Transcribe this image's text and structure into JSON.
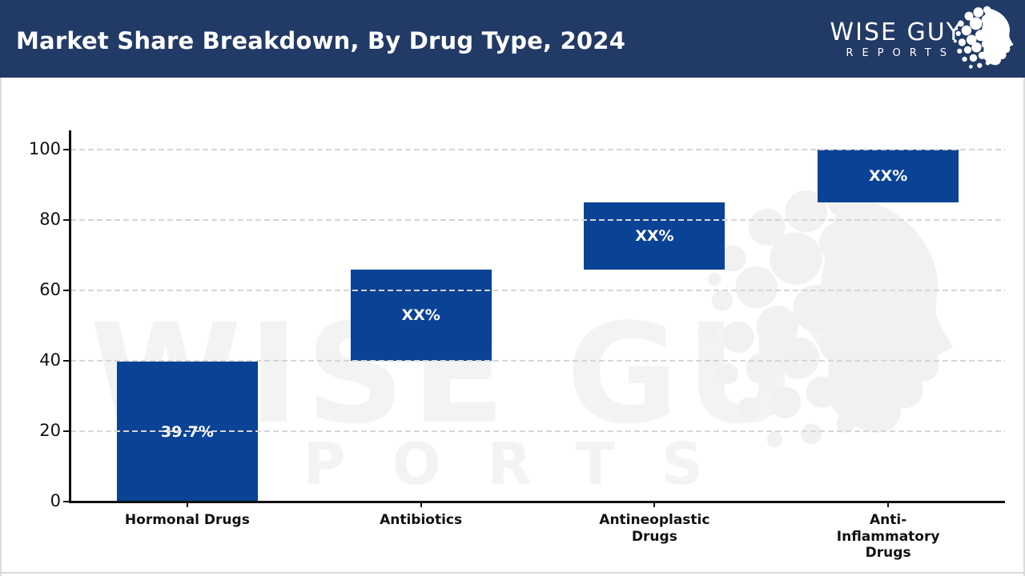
{
  "header": {
    "title": "Market Share Breakdown, By Drug Type, 2024",
    "background": "#213a66",
    "brand": {
      "line1": "WISE GUY",
      "line2": "REPORTS"
    }
  },
  "watermark": {
    "line1": "WISE GUY",
    "line2": "REPORTS"
  },
  "chart_data": {
    "type": "bar",
    "variant": "floating-waterfall",
    "title": "Market Share Breakdown, By Drug Type, 2024",
    "categories": [
      "Hormonal Drugs",
      "Antibiotics",
      "Antineoplastic Drugs",
      "Anti-Inflammatory Drugs"
    ],
    "series": [
      {
        "name": "Market Share (%)",
        "segments": [
          {
            "category": "Hormonal Drugs",
            "start": 0,
            "end": 39.7,
            "label": "39.7%"
          },
          {
            "category": "Antibiotics",
            "start": 40,
            "end": 66,
            "label": "XX%"
          },
          {
            "category": "Antineoplastic Drugs",
            "start": 66,
            "end": 85,
            "label": "XX%"
          },
          {
            "category": "Anti-Inflammatory Drugs",
            "start": 85,
            "end": 100,
            "label": "XX%"
          }
        ]
      }
    ],
    "xlabel": "",
    "ylabel": "",
    "ylim": [
      0,
      105
    ],
    "yticks": [
      0,
      20,
      40,
      60,
      80,
      100
    ],
    "grid": {
      "horizontal": true,
      "style": "dashed",
      "color": "#d6d6d6",
      "drawn_above_bars": true
    },
    "legend": "none",
    "colors": {
      "bar": "#0a4296",
      "bar_label": "#ffffff",
      "axis": "#111111",
      "tick_label": "#111111"
    }
  }
}
